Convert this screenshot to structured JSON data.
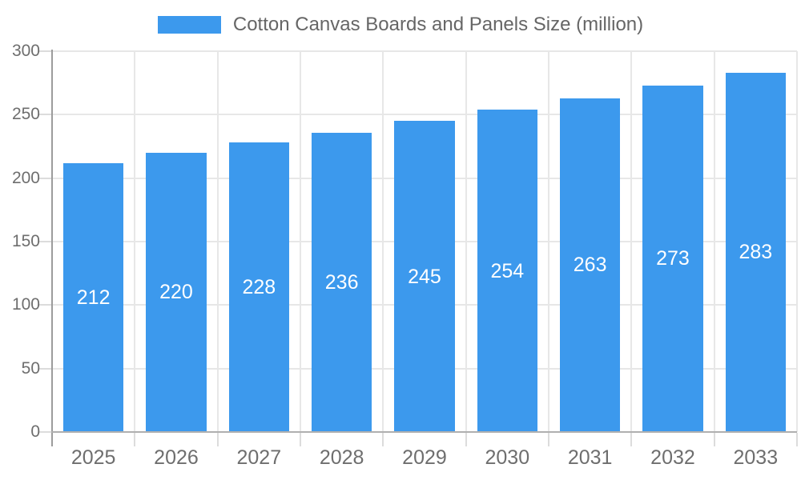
{
  "legend": {
    "label": "Cotton Canvas Boards and Panels Size (million)"
  },
  "chart_data": {
    "type": "bar",
    "title": "Cotton Canvas Boards and Panels Size (million)",
    "categories": [
      "2025",
      "2026",
      "2027",
      "2028",
      "2029",
      "2030",
      "2031",
      "2032",
      "2033"
    ],
    "values": [
      212,
      220,
      228,
      236,
      245,
      254,
      263,
      273,
      283
    ],
    "series_name": "Cotton Canvas Boards and Panels Size (million)",
    "xlabel": "",
    "ylabel": "",
    "ylim": [
      0,
      300
    ],
    "ytick_step": 50,
    "ytick_labels": [
      "0",
      "50",
      "100",
      "150",
      "200",
      "250",
      "300"
    ],
    "grid": true,
    "legend_position": "top",
    "value_labels_shown": true,
    "colors": {
      "bar": "#3C99ED",
      "value_label": "#FFFFFF",
      "gridline": "#E7E7E7",
      "tick": "#DCDCDC",
      "y_axis_line": "#9C9C9C",
      "x_axis_line": "#B0B0B0",
      "axis_text": "#6E6E6E",
      "legend_text": "#666666"
    }
  }
}
